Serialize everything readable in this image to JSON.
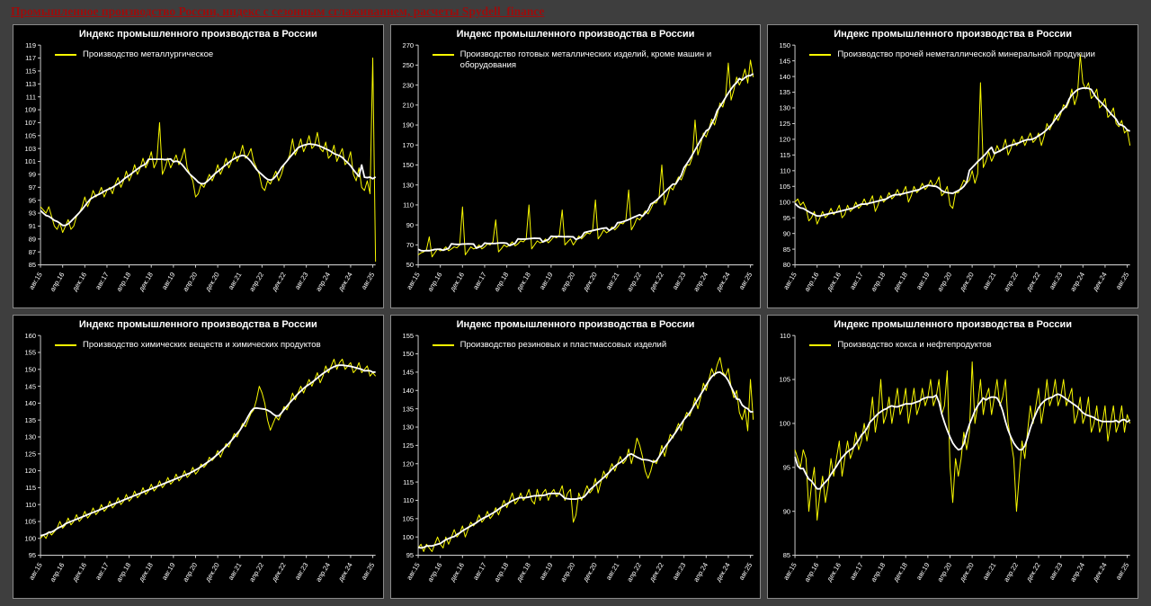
{
  "header": {
    "title": "Промышленное производство России, индекс с сезонным сглаживанием, расчеты Spydell_finance"
  },
  "colors": {
    "background": "#3e3e3e",
    "panel_background": "#000000",
    "panel_border": "#8a8a8a",
    "header_text": "#9b0d0d",
    "axis": "#c8c8c8",
    "tick_text": "#ffffff",
    "raw_line": "#f8f800",
    "trend_line": "#ffffff"
  },
  "x_axis": {
    "tick_labels": [
      "авг.15",
      "апр.16",
      "дек.16",
      "авг.17",
      "апр.18",
      "дек.18",
      "авг.19",
      "апр.20",
      "дек.20",
      "авг.21",
      "апр.22",
      "дек.22",
      "авг.23",
      "апр.24",
      "дек.24",
      "авг.25"
    ],
    "tick_step": 8,
    "frequency": "monthly"
  },
  "chart_data": [
    {
      "type": "line",
      "title": "Индекс промышленного производства в России",
      "legend": "Производство металлургическое",
      "y_min": 85,
      "y_max": 119,
      "y_step": 2,
      "trend": "centered_moving_average",
      "series": [
        {
          "name": "индекс с сезонным сглаживанием",
          "values": [
            94,
            93.5,
            93,
            94,
            92.5,
            91,
            90.5,
            91.5,
            90,
            91,
            92,
            90.5,
            91,
            92.5,
            93,
            94,
            95.5,
            94,
            95,
            96.5,
            95.5,
            96,
            97,
            95.5,
            96.5,
            97,
            96,
            97.5,
            98.5,
            97,
            98,
            99.5,
            98,
            99,
            100.5,
            99,
            100,
            101.5,
            100,
            101,
            102.5,
            100,
            101,
            107,
            99,
            100,
            101.5,
            100,
            101,
            102,
            100.5,
            101.5,
            103,
            100,
            99,
            98,
            95.5,
            96,
            97.5,
            97,
            98,
            99,
            98,
            99,
            100.5,
            99,
            100,
            101.5,
            100,
            101,
            102.5,
            101,
            102,
            103.5,
            101.5,
            102,
            103,
            101,
            100,
            99,
            97,
            96.5,
            98,
            97.5,
            98.5,
            99.5,
            98,
            99,
            100.5,
            101,
            102,
            104.5,
            102,
            103,
            104.5,
            102.5,
            103.5,
            105,
            103,
            103.5,
            105.5,
            103,
            102.5,
            104,
            101.5,
            102,
            103.5,
            101,
            102,
            103,
            100.5,
            101,
            102.5,
            99,
            98,
            100,
            97,
            96.5,
            98,
            96,
            117,
            85.5
          ]
        }
      ]
    },
    {
      "type": "line",
      "title": "Индекс промышленного производства в России",
      "legend": "Производство готовых металлических изделий, кроме машин и оборудования",
      "y_min": 50,
      "y_max": 270,
      "y_step": 20,
      "trend": "centered_moving_average",
      "series": [
        {
          "name": "индекс с сезонным сглаживанием",
          "values": [
            60,
            62,
            63,
            65,
            78,
            58,
            62,
            66,
            64,
            65,
            68,
            64,
            66,
            68,
            67,
            70,
            108,
            60,
            64,
            68,
            66,
            67,
            70,
            66,
            68,
            71,
            70,
            73,
            95,
            63,
            66,
            70,
            68,
            70,
            73,
            69,
            71,
            74,
            73,
            76,
            110,
            66,
            70,
            74,
            72,
            73,
            76,
            72,
            75,
            78,
            77,
            80,
            105,
            70,
            73,
            76,
            70,
            74,
            79,
            76,
            79,
            82,
            81,
            85,
            115,
            76,
            80,
            85,
            82,
            84,
            88,
            85,
            88,
            92,
            91,
            95,
            125,
            85,
            90,
            97,
            95,
            99,
            104,
            101,
            106,
            112,
            112,
            118,
            150,
            110,
            118,
            128,
            125,
            132,
            138,
            135,
            142,
            150,
            150,
            158,
            195,
            160,
            170,
            182,
            178,
            186,
            196,
            190,
            200,
            212,
            208,
            218,
            252,
            215,
            225,
            238,
            230,
            236,
            246,
            232,
            255,
            238
          ]
        }
      ]
    },
    {
      "type": "line",
      "title": "Индекс промышленного производства в России",
      "legend": "Производство прочей неметаллической минеральной продукции",
      "y_min": 80,
      "y_max": 150,
      "y_step": 5,
      "trend": "centered_moving_average",
      "series": [
        {
          "name": "индекс с сезонным сглаживанием",
          "values": [
            100,
            101,
            99,
            100,
            98,
            94,
            95,
            97,
            93,
            95,
            97,
            95,
            96,
            98,
            96,
            97,
            99,
            95,
            96,
            99,
            97,
            98,
            100,
            98,
            99,
            101,
            99,
            100,
            102,
            97,
            99,
            102,
            100,
            101,
            103,
            101,
            102,
            104,
            102,
            103,
            105,
            100,
            102,
            105,
            103,
            104,
            106,
            104,
            105,
            107,
            105,
            106,
            108,
            102,
            103,
            105,
            99,
            98,
            103,
            103,
            105,
            107,
            106,
            107,
            110,
            106,
            109,
            138,
            111,
            113,
            116,
            113,
            115,
            118,
            116,
            117,
            120,
            115,
            117,
            120,
            118,
            119,
            121,
            118,
            120,
            122,
            119,
            120,
            122,
            118,
            121,
            125,
            123,
            125,
            128,
            126,
            128,
            131,
            130,
            132,
            136,
            131,
            134,
            147,
            138,
            136,
            138,
            133,
            134,
            136,
            130,
            131,
            133,
            127,
            128,
            130,
            125,
            124,
            126,
            122,
            123,
            118
          ]
        }
      ]
    },
    {
      "type": "line",
      "title": "Индекс промышленного производства в России",
      "legend": "Производство химических веществ и химических продуктов",
      "y_min": 95,
      "y_max": 160,
      "y_step": 5,
      "trend": "centered_moving_average",
      "series": [
        {
          "name": "индекс с сезонным сглаживанием",
          "values": [
            100,
            101,
            100,
            102,
            101,
            102,
            103,
            105,
            103,
            104,
            106,
            104,
            105,
            107,
            105,
            106,
            108,
            106,
            107,
            109,
            107,
            108,
            110,
            108,
            109,
            111,
            109,
            110,
            112,
            110,
            111,
            113,
            111,
            112,
            114,
            112,
            113,
            115,
            113,
            114,
            116,
            114,
            115,
            117,
            115,
            116,
            118,
            116,
            117,
            119,
            117,
            118,
            120,
            118,
            119,
            121,
            119,
            120,
            122,
            121,
            122,
            124,
            123,
            124,
            126,
            124,
            126,
            128,
            127,
            129,
            131,
            130,
            132,
            134,
            133,
            135,
            137,
            138,
            141,
            145,
            143,
            140,
            135,
            132,
            134,
            136,
            135,
            137,
            139,
            138,
            140,
            143,
            141,
            143,
            145,
            143,
            145,
            147,
            145,
            147,
            149,
            146,
            148,
            151,
            149,
            151,
            153,
            150,
            152,
            153,
            150,
            151,
            152,
            149,
            150,
            152,
            149,
            150,
            151,
            148,
            149,
            148
          ]
        }
      ]
    },
    {
      "type": "line",
      "title": "Индекс промышленного производства в России",
      "legend": "Производство резиновых и пластмассовых изделий",
      "y_min": 95,
      "y_max": 155,
      "y_step": 5,
      "trend": "centered_moving_average",
      "series": [
        {
          "name": "индекс с сезонным сглаживанием",
          "values": [
            97,
            98,
            96,
            98,
            97,
            96,
            98,
            100,
            98,
            97,
            100,
            98,
            100,
            102,
            100,
            101,
            103,
            100,
            102,
            104,
            103,
            104,
            106,
            104,
            105,
            107,
            105,
            106,
            108,
            106,
            108,
            110,
            108,
            110,
            112,
            109,
            110,
            112,
            110,
            111,
            113,
            110,
            109,
            113,
            110,
            112,
            113,
            110,
            112,
            113,
            111,
            112,
            114,
            110,
            112,
            113,
            104,
            106,
            112,
            110,
            112,
            114,
            112,
            113,
            116,
            112,
            115,
            118,
            116,
            118,
            120,
            118,
            120,
            122,
            120,
            121,
            124,
            120,
            123,
            127,
            125,
            122,
            118,
            116,
            118,
            121,
            120,
            122,
            125,
            122,
            125,
            128,
            127,
            129,
            131,
            129,
            132,
            134,
            133,
            135,
            138,
            135,
            138,
            142,
            140,
            143,
            146,
            144,
            147,
            149,
            145,
            144,
            146,
            141,
            138,
            140,
            134,
            132,
            135,
            129,
            143,
            132
          ]
        }
      ]
    },
    {
      "type": "line",
      "title": "Индекс промышленного производства в России",
      "legend": "Производство кокса и нефтепродуктов",
      "y_min": 85,
      "y_max": 110,
      "y_step": 5,
      "trend": "centered_moving_average",
      "series": [
        {
          "name": "индекс с сезонным сглаживанием",
          "values": [
            97,
            96,
            95,
            97,
            96,
            90,
            93,
            95,
            89,
            92,
            94,
            91,
            93,
            96,
            94,
            96,
            98,
            94,
            96,
            98,
            96,
            97,
            99,
            97,
            98,
            100,
            98,
            100,
            103,
            99,
            101,
            105,
            100,
            101,
            103,
            100,
            102,
            104,
            101,
            102,
            104,
            100,
            102,
            104,
            101,
            102,
            104,
            102,
            103,
            105,
            102,
            103,
            105,
            101,
            102,
            106,
            95,
            91,
            96,
            94,
            96,
            99,
            97,
            99,
            107,
            100,
            102,
            105,
            101,
            103,
            104,
            101,
            103,
            105,
            102,
            103,
            105,
            100,
            98,
            96,
            90,
            94,
            98,
            96,
            99,
            102,
            100,
            102,
            104,
            100,
            102,
            105,
            102,
            103,
            105,
            102,
            103,
            105,
            102,
            103,
            104,
            100,
            101,
            103,
            100,
            101,
            103,
            99,
            100,
            102,
            99,
            100,
            102,
            98,
            100,
            102,
            99,
            100,
            102,
            99,
            101,
            100
          ]
        }
      ]
    }
  ]
}
